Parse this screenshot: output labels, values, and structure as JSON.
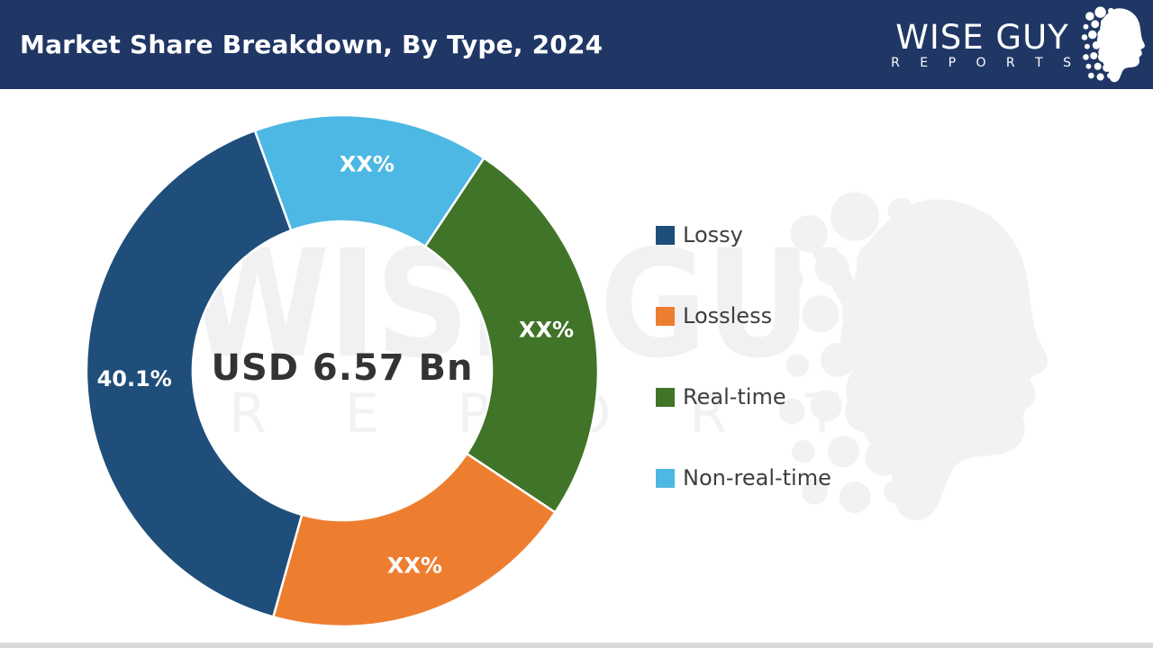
{
  "header": {
    "title": "Market Share Breakdown, By Type, 2024",
    "bg_color": "#203766",
    "text_color": "#FFFFFF",
    "logo": {
      "wordmark": "WISE GUY",
      "subtext": "REPORTS",
      "subtext_display": "R E P O R T S"
    }
  },
  "chart_data": {
    "type": "donut",
    "title": "Market Share Breakdown, By Type, 2024",
    "center_label": "USD 6.57 Bn",
    "start_angle_deg": -20,
    "hole_ratio": 0.585,
    "legend_position": "right",
    "segments": [
      {
        "label": "Lossy",
        "display_value": "40.1%",
        "value_pct": 40.1,
        "estimated": false,
        "color": "#1F4E7A"
      },
      {
        "label": "Lossless",
        "display_value": "XX%",
        "value_pct": 20.0,
        "estimated": true,
        "color": "#EE7E2F"
      },
      {
        "label": "Real-time",
        "display_value": "XX%",
        "value_pct": 25.0,
        "estimated": true,
        "color": "#407428"
      },
      {
        "label": "Non-real-time",
        "display_value": "XX%",
        "value_pct": 14.9,
        "estimated": true,
        "color": "#4DB8E3"
      }
    ]
  },
  "watermark": {
    "wordmark": "WISE GUY",
    "subtext": "R E P O R T S"
  },
  "footer": {
    "bar_color": "#D9D9D9"
  }
}
